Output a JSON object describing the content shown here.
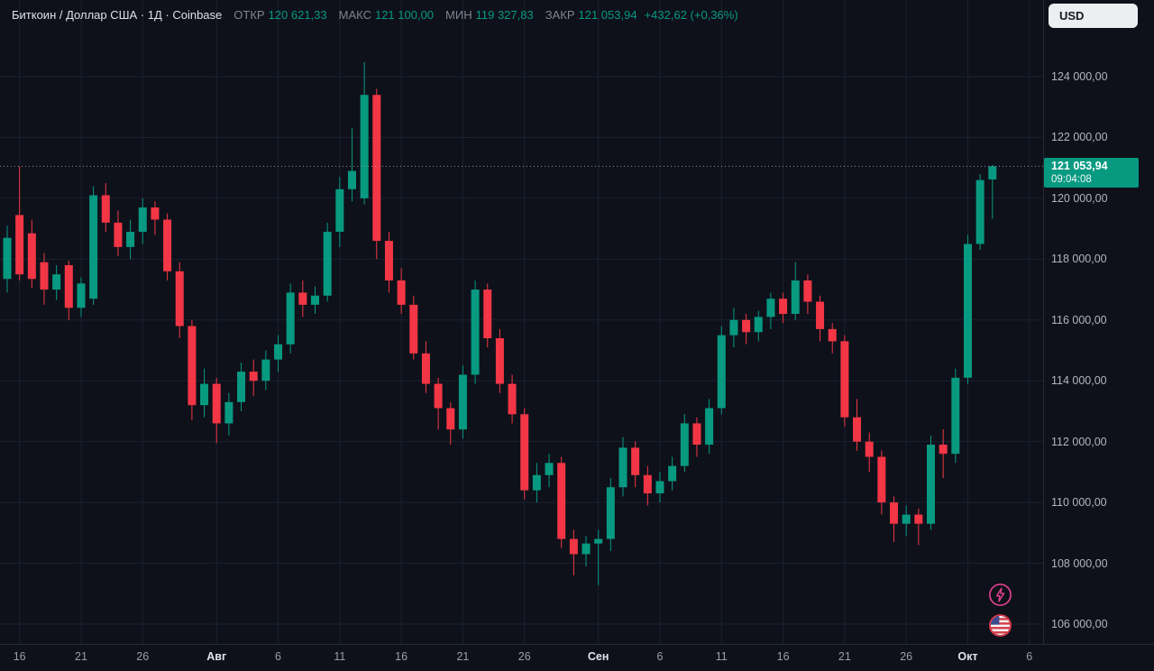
{
  "legend": {
    "title": "Биткоин / Доллар США · 1Д · Coinbase",
    "items": [
      {
        "key": "open",
        "label": "ОТКР",
        "value": "120 621,33"
      },
      {
        "key": "high",
        "label": "МАКС",
        "value": "121 100,00"
      },
      {
        "key": "low",
        "label": "МИН",
        "value": "119 327,83"
      },
      {
        "key": "close",
        "label": "ЗАКР",
        "value": "121 053,94"
      }
    ],
    "change": "+432,62 (+0,36%)"
  },
  "toolbar": {
    "currency_label": "USD"
  },
  "badge": {
    "price": "121 053,94",
    "countdown": "09:04:08"
  },
  "colors": {
    "up": "#089981",
    "down": "#f23645",
    "background": "#0e111a",
    "grid": "#1b2130",
    "axis_text": "#b2b5be",
    "badge_text": "#ffffff",
    "accent_pink": "#e0418f",
    "accent_red": "#e23b4a"
  },
  "chart_data": {
    "type": "candlestick",
    "symbol": "Биткоин / Доллар США",
    "interval": "1Д",
    "exchange": "Coinbase",
    "last_price": 121053.94,
    "last_bar": {
      "open": 120621.33,
      "high": 121100.0,
      "low": 119327.83,
      "close": 121053.94,
      "change": 432.62,
      "change_pct": 0.36
    },
    "y_axis": {
      "ticks": [
        {
          "price": 124000,
          "label": "124 000,00"
        },
        {
          "price": 122000,
          "label": "122 000,00"
        },
        {
          "price": 120000,
          "label": "120 000,00"
        },
        {
          "price": 118000,
          "label": "118 000,00"
        },
        {
          "price": 116000,
          "label": "116 000,00"
        },
        {
          "price": 114000,
          "label": "114 000,00"
        },
        {
          "price": 112000,
          "label": "112 000,00"
        },
        {
          "price": 110000,
          "label": "110 000,00"
        },
        {
          "price": 108000,
          "label": "108 000,00"
        },
        {
          "price": 106000,
          "label": "106 000,00"
        }
      ]
    },
    "x_axis": {
      "ticks": [
        {
          "label": "16",
          "i": 1
        },
        {
          "label": "21",
          "i": 6
        },
        {
          "label": "26",
          "i": 11
        },
        {
          "label": "Авг",
          "i": 17,
          "month": true
        },
        {
          "label": "6",
          "i": 22
        },
        {
          "label": "11",
          "i": 27
        },
        {
          "label": "16",
          "i": 32
        },
        {
          "label": "21",
          "i": 37
        },
        {
          "label": "26",
          "i": 42
        },
        {
          "label": "Сен",
          "i": 48,
          "month": true
        },
        {
          "label": "6",
          "i": 53
        },
        {
          "label": "11",
          "i": 58
        },
        {
          "label": "16",
          "i": 63
        },
        {
          "label": "21",
          "i": 68
        },
        {
          "label": "26",
          "i": 73
        },
        {
          "label": "Окт",
          "i": 78,
          "month": true
        },
        {
          "label": "6",
          "i": 83
        }
      ]
    },
    "dates": [
      "07-15",
      "07-16",
      "07-17",
      "07-18",
      "07-19",
      "07-20",
      "07-21",
      "07-22",
      "07-23",
      "07-24",
      "07-25",
      "07-26",
      "07-27",
      "07-28",
      "07-29",
      "07-30",
      "07-31",
      "08-01",
      "08-02",
      "08-03",
      "08-04",
      "08-05",
      "08-06",
      "08-07",
      "08-08",
      "08-09",
      "08-10",
      "08-11",
      "08-12",
      "08-13",
      "08-14",
      "08-15",
      "08-16",
      "08-17",
      "08-18",
      "08-19",
      "08-20",
      "08-21",
      "08-22",
      "08-23",
      "08-24",
      "08-25",
      "08-26",
      "08-27",
      "08-28",
      "08-29",
      "08-30",
      "08-31",
      "09-01",
      "09-02",
      "09-03",
      "09-04",
      "09-05",
      "09-06",
      "09-07",
      "09-08",
      "09-09",
      "09-10",
      "09-11",
      "09-12",
      "09-13",
      "09-14",
      "09-15",
      "09-16",
      "09-17",
      "09-18",
      "09-19",
      "09-20",
      "09-21",
      "09-22",
      "09-23",
      "09-24",
      "09-25",
      "09-26",
      "09-27",
      "09-28",
      "09-29",
      "09-30",
      "10-01",
      "10-02",
      "10-03"
    ],
    "ohlc": [
      [
        117350,
        119100,
        116900,
        118700
      ],
      [
        119450,
        121050,
        117300,
        117500
      ],
      [
        118850,
        119300,
        117050,
        117350
      ],
      [
        117900,
        118200,
        116500,
        117000
      ],
      [
        117000,
        117800,
        116650,
        117500
      ],
      [
        117800,
        117950,
        116000,
        116400
      ],
      [
        116400,
        117400,
        116100,
        117200
      ],
      [
        116700,
        120400,
        116500,
        120100
      ],
      [
        120100,
        120500,
        118900,
        119200
      ],
      [
        119200,
        119600,
        118100,
        118400
      ],
      [
        118400,
        119300,
        118000,
        118900
      ],
      [
        118900,
        120000,
        118500,
        119700
      ],
      [
        119700,
        119900,
        118800,
        119300
      ],
      [
        119300,
        119500,
        117300,
        117600
      ],
      [
        117600,
        117900,
        115400,
        115800
      ],
      [
        115800,
        116000,
        112700,
        113200
      ],
      [
        113200,
        114400,
        112800,
        113900
      ],
      [
        113900,
        114100,
        111950,
        112600
      ],
      [
        112600,
        113600,
        112200,
        113300
      ],
      [
        113300,
        114600,
        113000,
        114300
      ],
      [
        114300,
        114700,
        113500,
        114000
      ],
      [
        114000,
        115000,
        113700,
        114700
      ],
      [
        114700,
        115500,
        114300,
        115200
      ],
      [
        115200,
        117200,
        114900,
        116900
      ],
      [
        116900,
        117300,
        116100,
        116500
      ],
      [
        116500,
        117100,
        116200,
        116800
      ],
      [
        116800,
        119200,
        116600,
        118900
      ],
      [
        118900,
        120700,
        118400,
        120300
      ],
      [
        120300,
        122300,
        119900,
        120900
      ],
      [
        120000,
        124480,
        119800,
        123400
      ],
      [
        123400,
        123600,
        118000,
        118600
      ],
      [
        118600,
        118900,
        116900,
        117300
      ],
      [
        117300,
        117700,
        116200,
        116500
      ],
      [
        116500,
        116800,
        114700,
        114900
      ],
      [
        114900,
        115300,
        113600,
        113900
      ],
      [
        113900,
        114100,
        112400,
        113100
      ],
      [
        113100,
        113300,
        111900,
        112400
      ],
      [
        112400,
        114500,
        112100,
        114200
      ],
      [
        114200,
        117300,
        113900,
        117000
      ],
      [
        117000,
        117200,
        115100,
        115400
      ],
      [
        115400,
        115700,
        113600,
        113900
      ],
      [
        113900,
        114200,
        112600,
        112900
      ],
      [
        112900,
        113100,
        110100,
        110400
      ],
      [
        110400,
        111300,
        110000,
        110900
      ],
      [
        110900,
        111600,
        110500,
        111300
      ],
      [
        111300,
        111500,
        108500,
        108800
      ],
      [
        108800,
        109100,
        107600,
        108300
      ],
      [
        108300,
        108900,
        107900,
        108650
      ],
      [
        108650,
        109100,
        107280,
        108800
      ],
      [
        108800,
        110800,
        108400,
        110500
      ],
      [
        110500,
        112150,
        110200,
        111800
      ],
      [
        111800,
        112000,
        110500,
        110900
      ],
      [
        110900,
        111200,
        109900,
        110300
      ],
      [
        110300,
        111000,
        110000,
        110700
      ],
      [
        110700,
        111500,
        110400,
        111200
      ],
      [
        111200,
        112900,
        111000,
        112600
      ],
      [
        112600,
        112800,
        111500,
        111900
      ],
      [
        111900,
        113400,
        111600,
        113100
      ],
      [
        113100,
        115800,
        112900,
        115500
      ],
      [
        115500,
        116400,
        115100,
        116000
      ],
      [
        116000,
        116200,
        115200,
        115600
      ],
      [
        115600,
        116300,
        115300,
        116100
      ],
      [
        116100,
        116900,
        115700,
        116700
      ],
      [
        116700,
        116900,
        115900,
        116200
      ],
      [
        116200,
        117900,
        116000,
        117300
      ],
      [
        117300,
        117500,
        116200,
        116600
      ],
      [
        116600,
        116800,
        115300,
        115700
      ],
      [
        115700,
        115900,
        114900,
        115300
      ],
      [
        115300,
        115500,
        112500,
        112800
      ],
      [
        112800,
        113400,
        111700,
        112000
      ],
      [
        112000,
        112300,
        111000,
        111500
      ],
      [
        111500,
        111700,
        109600,
        110000
      ],
      [
        110000,
        110200,
        108700,
        109300
      ],
      [
        109300,
        109900,
        108900,
        109600
      ],
      [
        109600,
        109800,
        108600,
        109300
      ],
      [
        109300,
        112200,
        109100,
        111900
      ],
      [
        111900,
        112400,
        110800,
        111600
      ],
      [
        111600,
        114400,
        111300,
        114100
      ],
      [
        114100,
        118800,
        113900,
        118500
      ],
      [
        118500,
        120800,
        118300,
        120600
      ],
      [
        120621.33,
        121100,
        119327.83,
        121053.94
      ]
    ]
  }
}
